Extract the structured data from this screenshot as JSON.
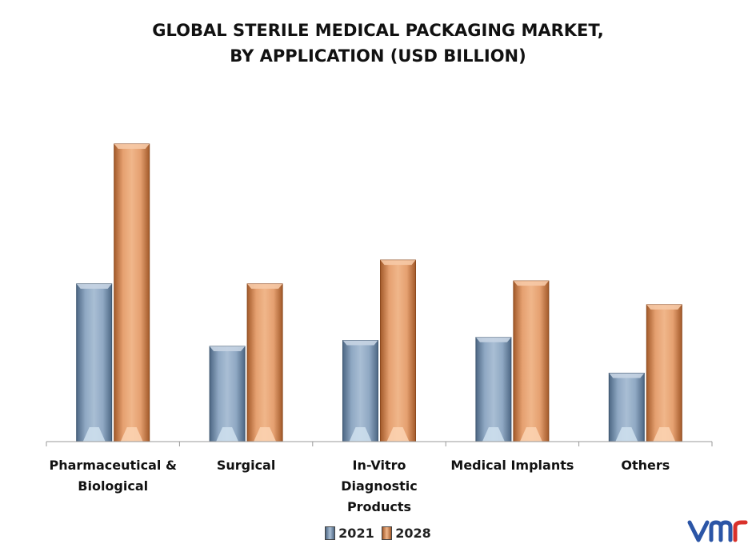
{
  "title": {
    "line1": "GLOBAL STERILE MEDICAL PACKAGING MARKET,",
    "line2": "BY APPLICATION (USD BILLION)"
  },
  "colors": {
    "series_2021": "#7d97b3",
    "series_2028": "#e3925c"
  },
  "legend": {
    "item_2021": "2021",
    "item_2028": "2028"
  },
  "logo": {
    "icon": "vmr-logo-icon"
  },
  "chart_data": {
    "type": "bar",
    "title": "GLOBAL STERILE MEDICAL PACKAGING MARKET, BY APPLICATION (USD BILLION)",
    "xlabel": "",
    "ylabel": "",
    "categories": [
      [
        "Pharmaceutical &",
        "Biological"
      ],
      [
        "Surgical"
      ],
      [
        "In-Vitro",
        "Diagnostic",
        "Products"
      ],
      [
        "Medical Implants"
      ],
      [
        "Others"
      ]
    ],
    "series": [
      {
        "name": "2021",
        "values": [
          5.3,
          3.2,
          3.4,
          3.5,
          2.3
        ]
      },
      {
        "name": "2028",
        "values": [
          10.0,
          5.3,
          6.1,
          5.4,
          4.6
        ]
      }
    ],
    "ylim": [
      0,
      10.5
    ],
    "grid": false,
    "legend_position": "bottom"
  }
}
